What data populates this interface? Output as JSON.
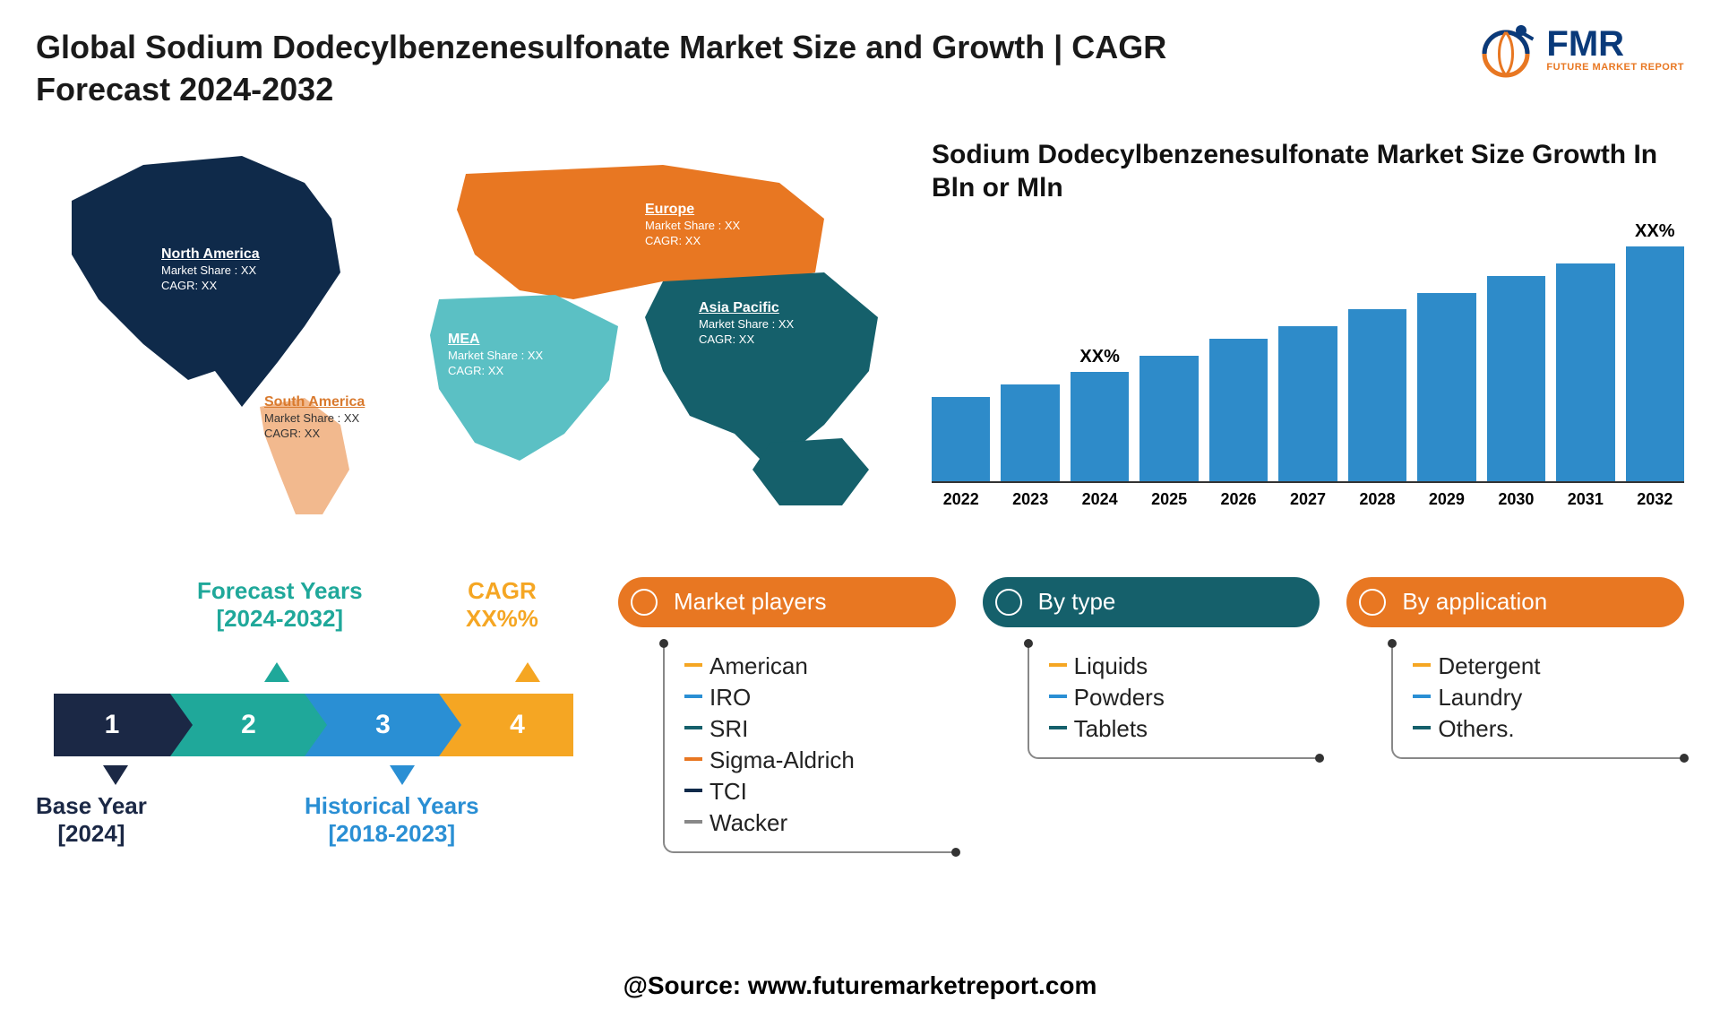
{
  "title": "Global Sodium Dodecylbenzenesulfonate Market Size and Growth | CAGR Forecast 2024-2032",
  "logo": {
    "brand_main": "FMR",
    "brand_sub": "FUTURE MARKET REPORT",
    "icon_color": "#e87722",
    "text_color": "#0a3a7a"
  },
  "map": {
    "north_america": {
      "name": "North America",
      "share": "Market Share : XX",
      "cagr": "CAGR: XX",
      "fill": "#0f2a4a"
    },
    "south_america": {
      "name": "South America",
      "share": "Market Share : XX",
      "cagr": "CAGR: XX",
      "fill": "#f2b98e",
      "text_color": "#333"
    },
    "europe": {
      "name": "Europe",
      "share": "Market Share : XX",
      "cagr": "CAGR: XX",
      "fill": "#e87722"
    },
    "mea": {
      "name": "MEA",
      "share": "Market Share : XX",
      "cagr": "CAGR: XX",
      "fill": "#5bc0c4"
    },
    "asia_pacific": {
      "name": "Asia Pacific",
      "share": "Market Share : XX",
      "cagr": "CAGR: XX",
      "fill": "#15606b"
    }
  },
  "chart": {
    "type": "bar",
    "title": "Sodium Dodecylbenzenesulfonate Market Size Growth In Bln or Mln",
    "categories": [
      "2022",
      "2023",
      "2024",
      "2025",
      "2026",
      "2027",
      "2028",
      "2029",
      "2030",
      "2031",
      "2032"
    ],
    "values": [
      100,
      115,
      130,
      150,
      170,
      185,
      205,
      225,
      245,
      260,
      280
    ],
    "ylim": [
      0,
      300
    ],
    "bar_color": "#2e8bc9",
    "axis_color": "#333333",
    "tag_2024": "XX%",
    "tag_2032": "XX%",
    "tag_fontsize": 20,
    "label_fontsize": 18
  },
  "timeline": {
    "forecast": {
      "label": "Forecast Years",
      "range": "[2024-2032]",
      "color": "#1fa89a"
    },
    "cagr": {
      "label": "CAGR",
      "value": "XX%%",
      "color": "#f5a623"
    },
    "base": {
      "label": "Base Year",
      "range": "[2024]",
      "color": "#1b2845"
    },
    "hist": {
      "label": "Historical Years",
      "range": "[2018-2023]",
      "color": "#2a8fd4"
    },
    "segments": [
      "1",
      "2",
      "3",
      "4"
    ]
  },
  "columns": {
    "players": {
      "header": "Market players",
      "pill_bg": "#e87722",
      "items": [
        {
          "label": "American",
          "mark": "#f5a623"
        },
        {
          "label": "IRO",
          "mark": "#2a8fd4"
        },
        {
          "label": "SRI",
          "mark": "#15606b"
        },
        {
          "label": "Sigma-Aldrich",
          "mark": "#e87722"
        },
        {
          "label": "TCI",
          "mark": "#0f2a4a"
        },
        {
          "label": "Wacker",
          "mark": "#888888"
        }
      ]
    },
    "type": {
      "header": "By type",
      "pill_bg": "#15606b",
      "items": [
        {
          "label": "Liquids",
          "mark": "#f5a623"
        },
        {
          "label": "Powders",
          "mark": "#2a8fd4"
        },
        {
          "label": "Tablets",
          "mark": "#15606b"
        }
      ]
    },
    "application": {
      "header": "By application",
      "pill_bg": "#e87722",
      "items": [
        {
          "label": "Detergent",
          "mark": "#f5a623"
        },
        {
          "label": "Laundry",
          "mark": "#2a8fd4"
        },
        {
          "label": "Others.",
          "mark": "#15606b"
        }
      ]
    }
  },
  "source": "@Source: www.futuremarketreport.com"
}
